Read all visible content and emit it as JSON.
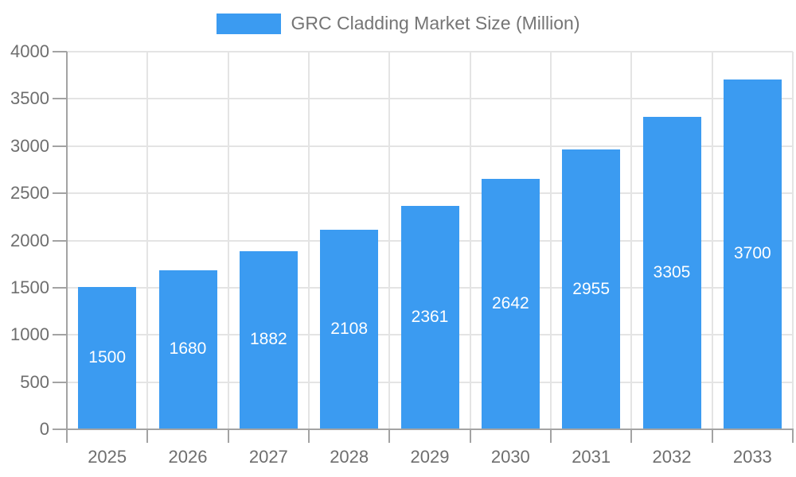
{
  "chart_data": {
    "type": "bar",
    "title": "GRC Cladding Market Size (Million)",
    "categories": [
      "2025",
      "2026",
      "2027",
      "2028",
      "2029",
      "2030",
      "2031",
      "2032",
      "2033"
    ],
    "values": [
      1500,
      1680,
      1882,
      2108,
      2361,
      2642,
      2955,
      3305,
      3700
    ],
    "xlabel": "",
    "ylabel": "",
    "ylim": [
      0,
      4000
    ],
    "ytick_step": 500,
    "yticks": [
      0,
      500,
      1000,
      1500,
      2000,
      2500,
      3000,
      3500,
      4000
    ],
    "grid": true,
    "legend_position": "top",
    "value_labels": "inside-bar-centered",
    "colors": {
      "bar": "#3B9BF1",
      "grid": "#E4E4E4",
      "axis_line": "#A3A3A3",
      "axis_text": "#6E6E6E",
      "legend_text": "#757575",
      "value_label": "#FFFFFF",
      "background": "#FFFFFF"
    }
  }
}
